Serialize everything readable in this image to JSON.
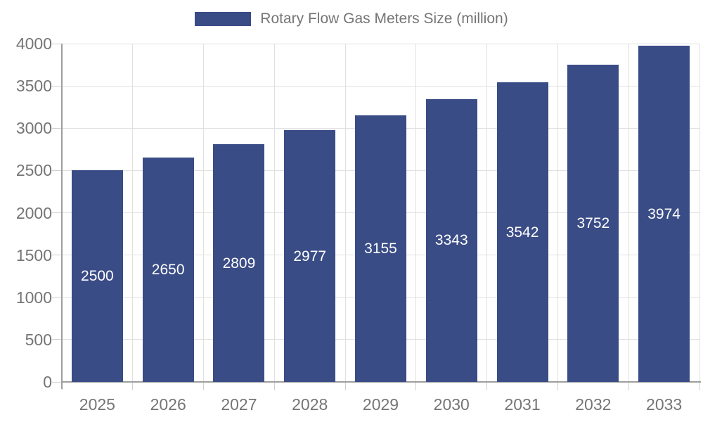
{
  "chart_data": {
    "type": "bar",
    "title": "",
    "xlabel": "",
    "ylabel": "",
    "legend": "Rotary Flow Gas Meters Size (million)",
    "legend_position": "top-center",
    "categories": [
      "2025",
      "2026",
      "2027",
      "2028",
      "2029",
      "2030",
      "2031",
      "2032",
      "2033"
    ],
    "values": [
      2500,
      2650,
      2809,
      2977,
      3155,
      3343,
      3542,
      3752,
      3974
    ],
    "ylim": [
      0,
      4000
    ],
    "yticks": [
      0,
      500,
      1000,
      1500,
      2000,
      2500,
      3000,
      3500,
      4000
    ],
    "grid": true,
    "bar_labels_inside": true,
    "colors": {
      "bar": "#3A4C86",
      "bar_label_text": "#ffffff",
      "axis_text": "#757575",
      "legend_text": "#757575",
      "grid_line": "#e0e0e0",
      "axis_line": "#9e9e9e",
      "tick_mark": "#cfcfcf",
      "background": "#ffffff"
    }
  }
}
